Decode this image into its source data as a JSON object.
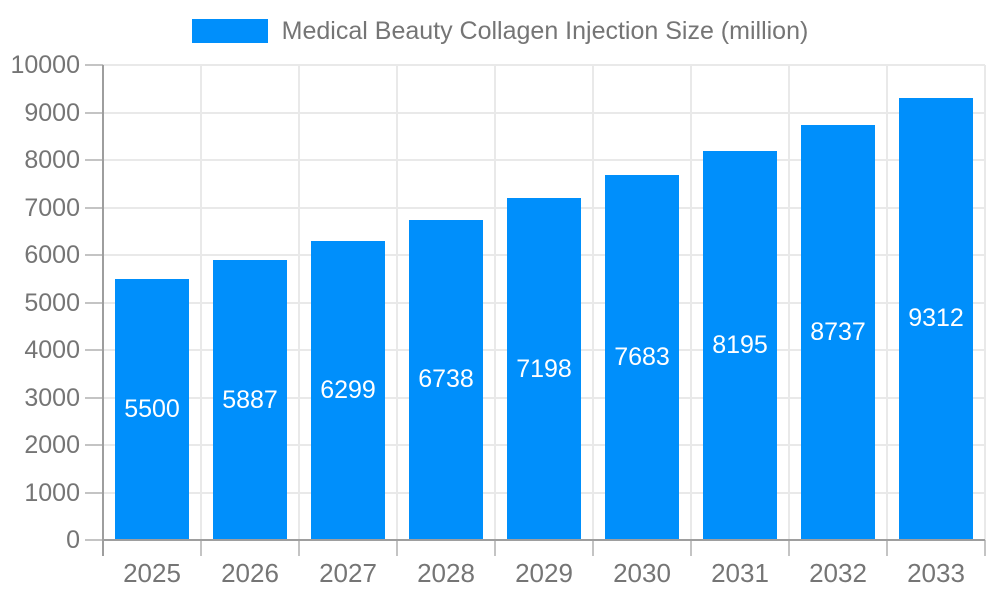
{
  "legend": {
    "series_label": "Medical Beauty Collagen Injection Size (million)"
  },
  "colors": {
    "bar": "#008FFB",
    "axis_label_text": "#757575",
    "legend_text": "#757575",
    "value_label_text": "#FFFFFF",
    "gridline": "#E9E9E9",
    "axis_line": "#9E9E9E",
    "tick": "#C4C4C4",
    "background": "#FFFFFF"
  },
  "chart_data": {
    "type": "bar",
    "title": "Medical Beauty Collagen Injection Size (million)",
    "categories": [
      "2025",
      "2026",
      "2027",
      "2028",
      "2029",
      "2030",
      "2031",
      "2032",
      "2033"
    ],
    "values": [
      5500,
      5887,
      6299,
      6738,
      7198,
      7683,
      8195,
      8737,
      9312
    ],
    "xlabel": "",
    "ylabel": "",
    "ylim": [
      0,
      10000
    ],
    "ytick_step": 1000,
    "ytick_labels": [
      "0",
      "1000",
      "2000",
      "3000",
      "4000",
      "5000",
      "6000",
      "7000",
      "8000",
      "9000",
      "10000"
    ],
    "grid": true,
    "legend_position": "top",
    "value_labels_inside_bars": true
  }
}
